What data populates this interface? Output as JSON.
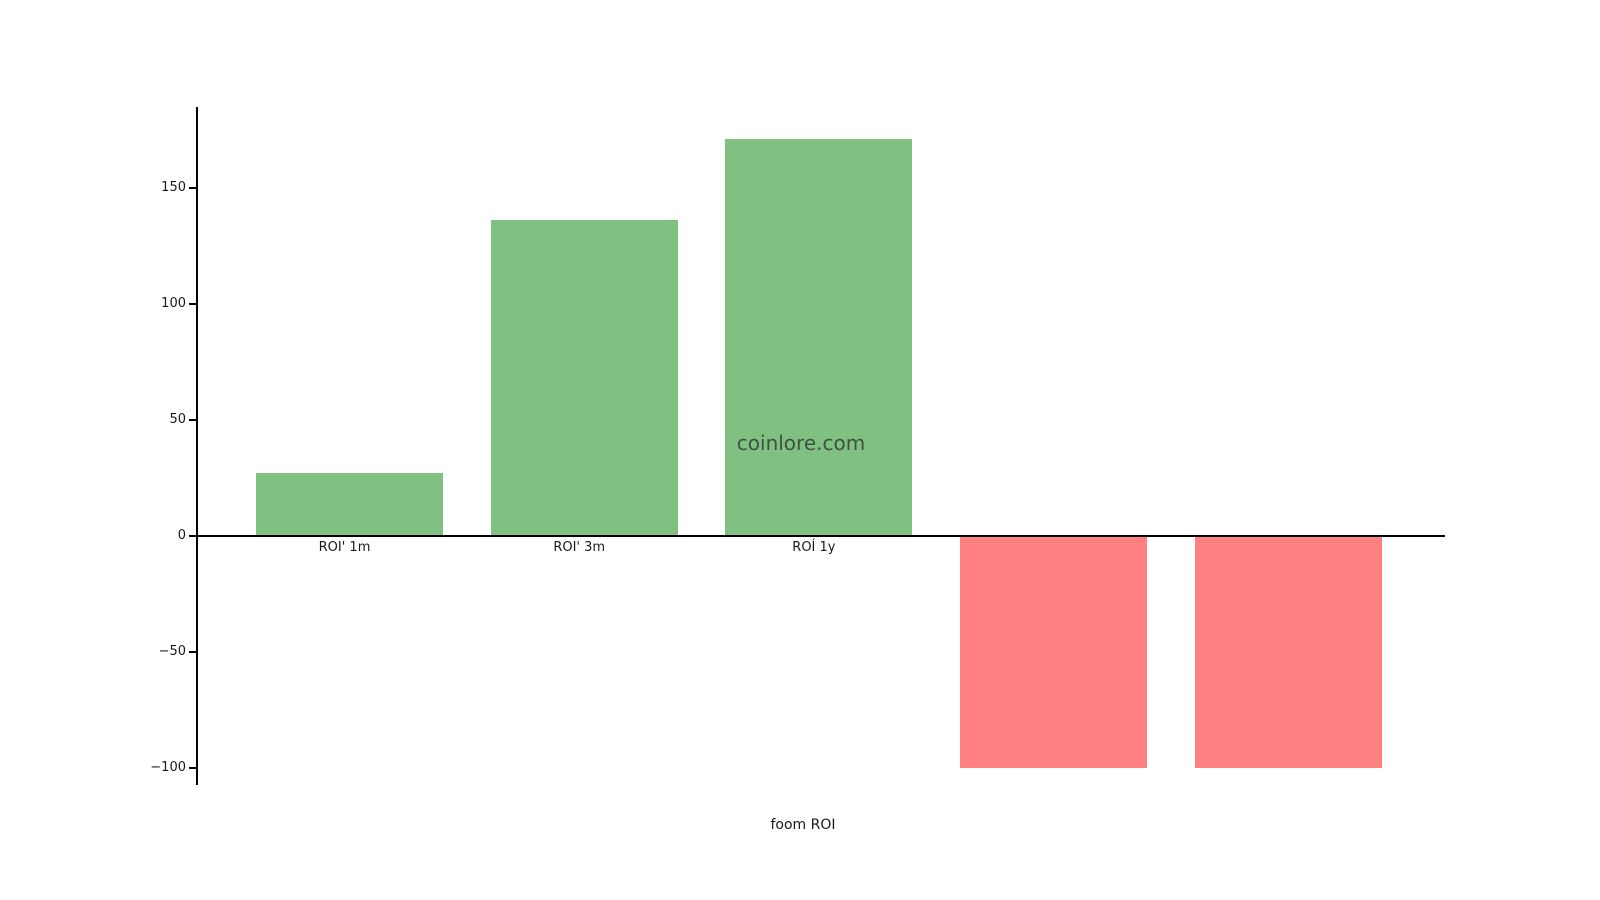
{
  "watermark": {
    "text": "coinlore.com"
  },
  "chart_data": {
    "type": "bar",
    "title": "",
    "xlabel": "foom ROI",
    "ylabel": "",
    "categories": [
      "ROI' 1m",
      "ROI' 3m",
      "ROÍ 1y",
      "",
      ""
    ],
    "values": [
      27,
      136,
      171,
      -100,
      -100
    ],
    "bar_colors": [
      "#80c080",
      "#80c080",
      "#80c080",
      "#ff8080",
      "#ff8080"
    ],
    "positive_color": "#80c080",
    "negative_color": "#ff8080",
    "axis_color": "#000000",
    "y_ticks": [
      150,
      100,
      50,
      0,
      -50,
      -100
    ],
    "ylim": [
      -107,
      185
    ],
    "grid": false,
    "legend": null
  }
}
